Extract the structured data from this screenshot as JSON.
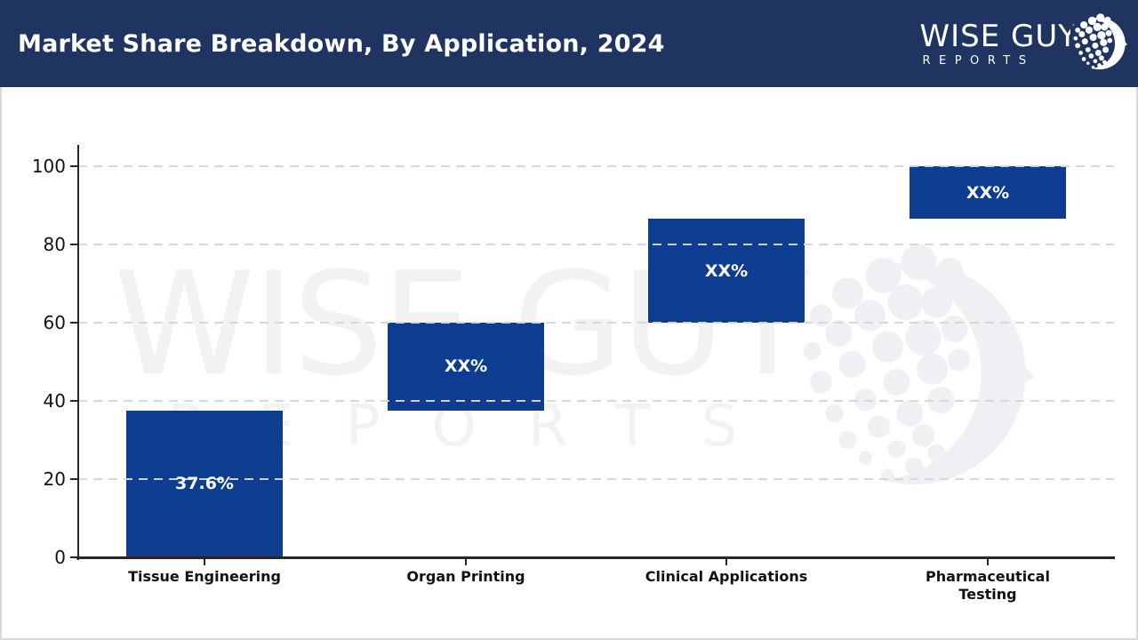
{
  "header": {
    "title": "Market Share Breakdown, By Application, 2024",
    "logo": {
      "line1": "WISE GUY",
      "line2": "REPORTS"
    }
  },
  "watermark": {
    "line1": "WISE GUY",
    "line2": "REPORTS"
  },
  "colors": {
    "header_bg": "#203462",
    "bar": "#0d3d91",
    "grid": "#d6d6d6",
    "axis": "#262626",
    "tick_text": "#111111",
    "bar_label_text": "#ffffff",
    "watermark": "#f1f2f4",
    "frame_border": "#d9d9d9"
  },
  "chart_data": {
    "type": "bar",
    "subtype": "waterfall",
    "title": "Market Share Breakdown, By Application, 2024",
    "categories": [
      "Tissue Engineering",
      "Organ Printing",
      "Clinical Applications",
      "Pharmaceutical Testing"
    ],
    "segments": [
      {
        "category": "Tissue Engineering",
        "start": 0,
        "end": 37.6,
        "label": "37.6%"
      },
      {
        "category": "Organ Printing",
        "start": 37.6,
        "end": 60,
        "label": "XX%"
      },
      {
        "category": "Clinical Applications",
        "start": 60,
        "end": 86.5,
        "label": "XX%"
      },
      {
        "category": "Pharmaceutical Testing",
        "start": 86.5,
        "end": 100,
        "label": "XX%"
      }
    ],
    "yticks": [
      0,
      20,
      40,
      60,
      80,
      100
    ],
    "ylim": [
      0,
      100
    ],
    "xlabel": "",
    "ylabel": "",
    "grid": "horizontal-dashed",
    "legend": "none"
  }
}
